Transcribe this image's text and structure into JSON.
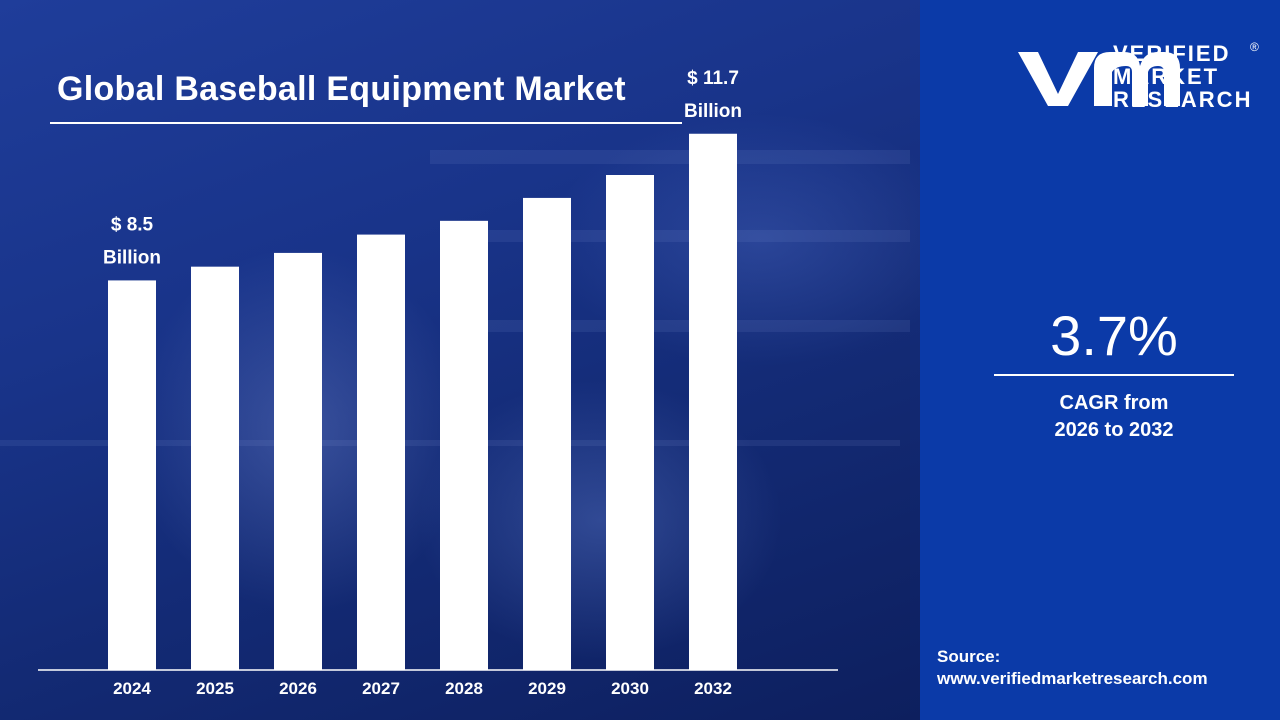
{
  "title": "Global Baseball Equipment Market",
  "brand": {
    "line1": "VERIFIED",
    "line2": "MARKET",
    "line3": "RESEARCH",
    "registered": "®"
  },
  "cagr": {
    "value": "3.7%",
    "caption_line1": "CAGR from",
    "caption_line2": "2026 to 2032"
  },
  "source": {
    "label": "Source:",
    "url": "www.verifiedmarketresearch.com"
  },
  "colors": {
    "bar": "#ffffff",
    "right_panel": "#0b3aa8",
    "background": "#1a3688"
  },
  "chart_data": {
    "type": "bar",
    "title": "Global Baseball Equipment Market",
    "categories": [
      "2024",
      "2025",
      "2026",
      "2027",
      "2028",
      "2029",
      "2030",
      "2032"
    ],
    "values": [
      8.5,
      8.8,
      9.1,
      9.5,
      9.8,
      10.3,
      10.8,
      11.7
    ],
    "annotations": [
      {
        "category": "2024",
        "line1": "$ 8.5",
        "line2": "Billion"
      },
      {
        "category": "2032",
        "line1": "$ 11.7",
        "line2": "Billion"
      }
    ],
    "unit": "USD Billion",
    "xlabel": "",
    "ylabel": "",
    "ylim": [
      0,
      12
    ],
    "grid": false,
    "legend": false
  }
}
